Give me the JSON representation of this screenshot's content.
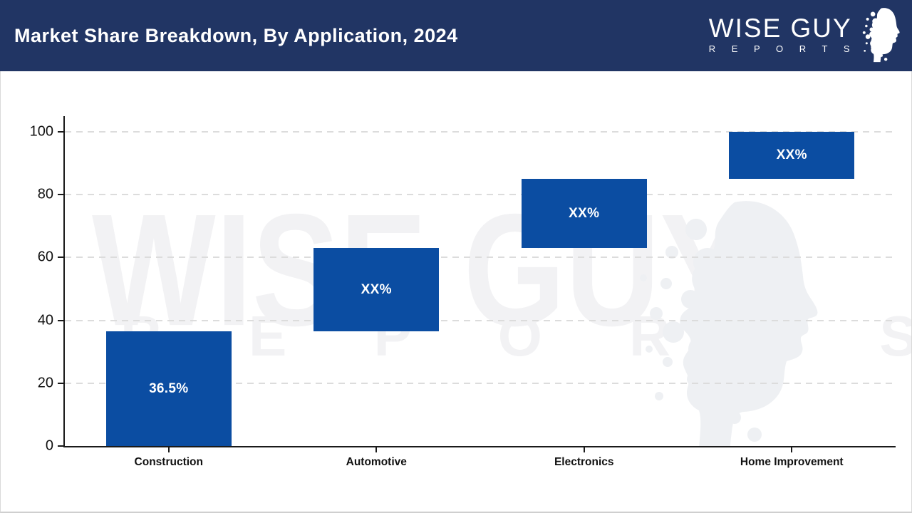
{
  "header": {
    "title": "Market Share Breakdown, By Application, 2024",
    "logo": {
      "line1": "WISE GUY",
      "line2": "R E P O R T S"
    }
  },
  "watermark": {
    "line1": "WISE GUY",
    "line2": "R E P O R T S"
  },
  "colors": {
    "header_bg": "#213564",
    "bar": "#0b4da2",
    "bar_label": "#ffffff",
    "gridline": "#dcdcdc",
    "axis": "#1a1a1a",
    "watermark": "#f2f2f4"
  },
  "chart_data": {
    "type": "bar",
    "subtype": "waterfall",
    "title": "Market Share Breakdown, By Application, 2024",
    "categories": [
      "Construction",
      "Automotive",
      "Electronics",
      "Home Improvement"
    ],
    "segments": [
      {
        "category": "Construction",
        "start": 0,
        "end": 36.5,
        "label": "36.5%"
      },
      {
        "category": "Automotive",
        "start": 36.5,
        "end": 63,
        "label": "XX%"
      },
      {
        "category": "Electronics",
        "start": 63,
        "end": 85,
        "label": "XX%"
      },
      {
        "category": "Home Improvement",
        "start": 85,
        "end": 100,
        "label": "XX%"
      }
    ],
    "yticks": [
      0,
      20,
      40,
      60,
      80,
      100
    ],
    "ylim": [
      0,
      105
    ],
    "xlabel": "",
    "ylabel": "",
    "grid": "horizontal-dashed",
    "legend": "none",
    "bar_color": "#0b4da2"
  }
}
